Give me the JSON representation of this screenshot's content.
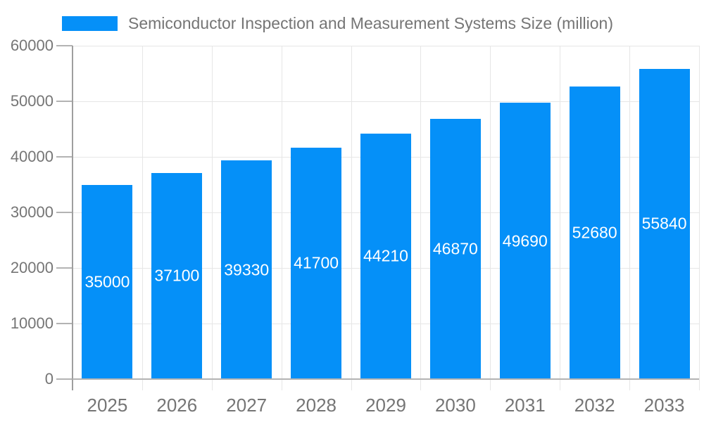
{
  "legend": {
    "label": "Semiconductor Inspection and Measurement Systems Size (million)"
  },
  "chart_data": {
    "type": "bar",
    "title": "Semiconductor Inspection and Measurement Systems Size (million)",
    "series_name": "Semiconductor Inspection and Measurement Systems Size (million)",
    "categories": [
      "2025",
      "2026",
      "2027",
      "2028",
      "2029",
      "2030",
      "2031",
      "2032",
      "2033"
    ],
    "values": [
      35000,
      37100,
      39330,
      41700,
      44210,
      46870,
      49690,
      52680,
      55840
    ],
    "xlabel": "",
    "ylabel": "",
    "ylim": [
      0,
      60000
    ],
    "yticks": [
      0,
      10000,
      20000,
      30000,
      40000,
      50000,
      60000
    ],
    "grid": true,
    "legend_position": "top-left",
    "value_label_position": "inside-center",
    "colors": {
      "bar": "#0590f8",
      "grid": "#e6e6e6",
      "axis_line": "#9e9e9e",
      "baseline": "#b3b3b3",
      "text": "#757575",
      "value_label": "#ffffff",
      "background": "#ffffff"
    }
  }
}
